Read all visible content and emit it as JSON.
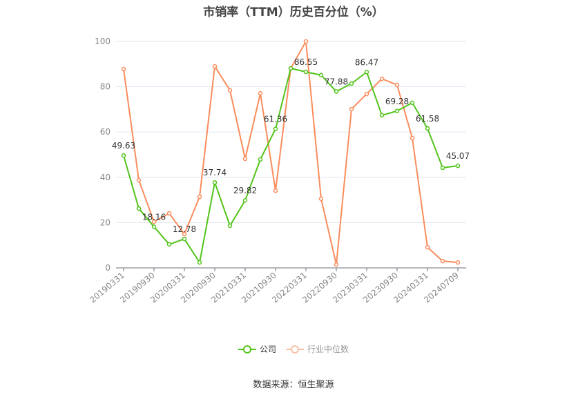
{
  "title": "市销率（TTM）历史百分位（%）",
  "source": "数据来源：恒生聚源",
  "legend": [
    {
      "name": "公司",
      "color": "#52c41a"
    },
    {
      "name": "行业中位数",
      "color": "#fa8c5c"
    }
  ],
  "chart_data": {
    "type": "line",
    "title": "市销率（TTM）历史百分位（%）",
    "xlabel": "",
    "ylabel": "",
    "ylim": [
      0,
      100
    ],
    "yticks": [
      0,
      20,
      40,
      60,
      80,
      100
    ],
    "grid": true,
    "legend_position": "bottom",
    "x_tick_labels": [
      "20190331",
      "20190930",
      "20200331",
      "20200930",
      "20210331",
      "20210930",
      "20220331",
      "20220930",
      "20230331",
      "20230930",
      "20240331",
      "20240709"
    ],
    "x": [
      "20190331",
      "20190630",
      "20190930",
      "20191231",
      "20200331",
      "20200630",
      "20200930",
      "20201231",
      "20210331",
      "20210630",
      "20210930",
      "20211231",
      "20220331",
      "20220630",
      "20220930",
      "20221231",
      "20230331",
      "20230630",
      "20230930",
      "20231231",
      "20240331",
      "20240630",
      "20240709"
    ],
    "series": [
      {
        "name": "公司",
        "color": "#52c41a",
        "values": [
          49.63,
          26.2,
          18.16,
          10.4,
          12.78,
          2.4,
          37.74,
          18.6,
          29.82,
          47.9,
          61.36,
          88.1,
          86.55,
          85.1,
          77.88,
          81.4,
          86.47,
          67.4,
          69.28,
          72.9,
          61.58,
          44.2,
          45.07
        ],
        "labeled_indices": [
          0,
          2,
          4,
          6,
          8,
          10,
          12,
          14,
          16,
          18,
          20,
          22
        ]
      },
      {
        "name": "行业中位数",
        "color": "#fa8c5c",
        "values": [
          87.8,
          38.7,
          20.4,
          24.1,
          14.9,
          31.4,
          89.0,
          78.4,
          48.2,
          77.1,
          34.1,
          88.1,
          100,
          30.5,
          1.5,
          70.1,
          76.8,
          83.5,
          80.8,
          57.3,
          9.1,
          3.0,
          2.4
        ]
      }
    ]
  }
}
